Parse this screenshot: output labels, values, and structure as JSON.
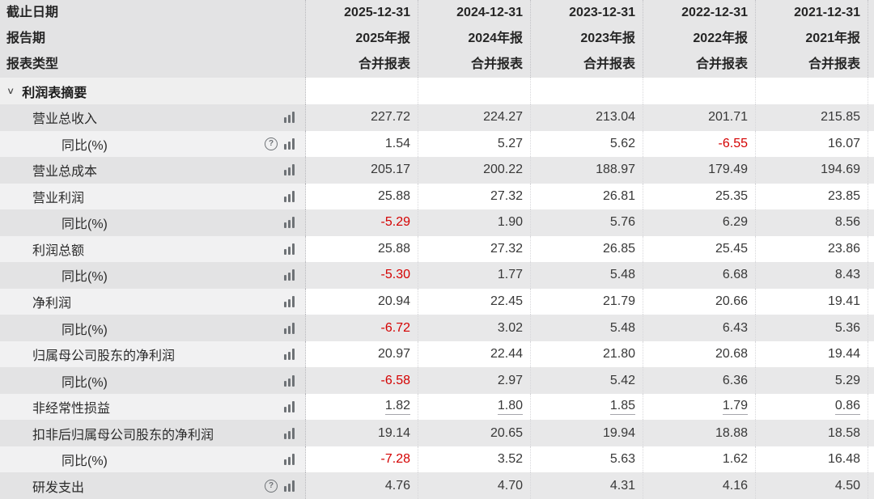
{
  "header": {
    "row_labels": [
      "截止日期",
      "报告期",
      "报表类型"
    ],
    "columns": [
      {
        "date": "2025-12-31",
        "period": "2025年报",
        "type": "合并报表"
      },
      {
        "date": "2024-12-31",
        "period": "2024年报",
        "type": "合并报表"
      },
      {
        "date": "2023-12-31",
        "period": "2023年报",
        "type": "合并报表"
      },
      {
        "date": "2022-12-31",
        "period": "2022年报",
        "type": "合并报表"
      },
      {
        "date": "2021-12-31",
        "period": "2021年报",
        "type": "合并报表"
      }
    ]
  },
  "section": {
    "label": "利润表摘要",
    "chevron_glyph": "∨",
    "collapse_icon": "chevron-down-icon"
  },
  "icons": {
    "chart": "bar-chart-icon",
    "help": "question-mark-icon",
    "help_glyph": "?"
  },
  "colors": {
    "negative_value": "#d40000",
    "normal_value": "#383838",
    "row_gray": "#e8e8e9",
    "row_light": "#ffffff"
  },
  "rows": [
    {
      "label": "营业总收入",
      "indent": 1,
      "help": false,
      "underline": false,
      "values": [
        "227.72",
        "224.27",
        "213.04",
        "201.71",
        "215.85"
      ]
    },
    {
      "label": "同比(%)",
      "indent": 2,
      "help": true,
      "underline": false,
      "values": [
        "1.54",
        "5.27",
        "5.62",
        "-6.55",
        "16.07"
      ]
    },
    {
      "label": "营业总成本",
      "indent": 1,
      "help": false,
      "underline": false,
      "values": [
        "205.17",
        "200.22",
        "188.97",
        "179.49",
        "194.69"
      ]
    },
    {
      "label": "营业利润",
      "indent": 1,
      "help": false,
      "underline": false,
      "values": [
        "25.88",
        "27.32",
        "26.81",
        "25.35",
        "23.85"
      ]
    },
    {
      "label": "同比(%)",
      "indent": 2,
      "help": false,
      "underline": false,
      "values": [
        "-5.29",
        "1.90",
        "5.76",
        "6.29",
        "8.56"
      ]
    },
    {
      "label": "利润总额",
      "indent": 1,
      "help": false,
      "underline": false,
      "values": [
        "25.88",
        "27.32",
        "26.85",
        "25.45",
        "23.86"
      ]
    },
    {
      "label": "同比(%)",
      "indent": 2,
      "help": false,
      "underline": false,
      "values": [
        "-5.30",
        "1.77",
        "5.48",
        "6.68",
        "8.43"
      ]
    },
    {
      "label": "净利润",
      "indent": 1,
      "help": false,
      "underline": false,
      "values": [
        "20.94",
        "22.45",
        "21.79",
        "20.66",
        "19.41"
      ]
    },
    {
      "label": "同比(%)",
      "indent": 2,
      "help": false,
      "underline": false,
      "values": [
        "-6.72",
        "3.02",
        "5.48",
        "6.43",
        "5.36"
      ]
    },
    {
      "label": "归属母公司股东的净利润",
      "indent": 1,
      "help": false,
      "underline": false,
      "values": [
        "20.97",
        "22.44",
        "21.80",
        "20.68",
        "19.44"
      ]
    },
    {
      "label": "同比(%)",
      "indent": 2,
      "help": false,
      "underline": false,
      "values": [
        "-6.58",
        "2.97",
        "5.42",
        "6.36",
        "5.29"
      ]
    },
    {
      "label": "非经常性损益",
      "indent": 1,
      "help": false,
      "underline": true,
      "values": [
        "1.82",
        "1.80",
        "1.85",
        "1.79",
        "0.86"
      ]
    },
    {
      "label": "扣非后归属母公司股东的净利润",
      "indent": 1,
      "help": false,
      "underline": false,
      "values": [
        "19.14",
        "20.65",
        "19.94",
        "18.88",
        "18.58"
      ]
    },
    {
      "label": "同比(%)",
      "indent": 2,
      "help": false,
      "underline": false,
      "values": [
        "-7.28",
        "3.52",
        "5.63",
        "1.62",
        "16.48"
      ]
    },
    {
      "label": "研发支出",
      "indent": 1,
      "help": true,
      "underline": false,
      "values": [
        "4.76",
        "4.70",
        "4.31",
        "4.16",
        "4.50"
      ]
    }
  ]
}
